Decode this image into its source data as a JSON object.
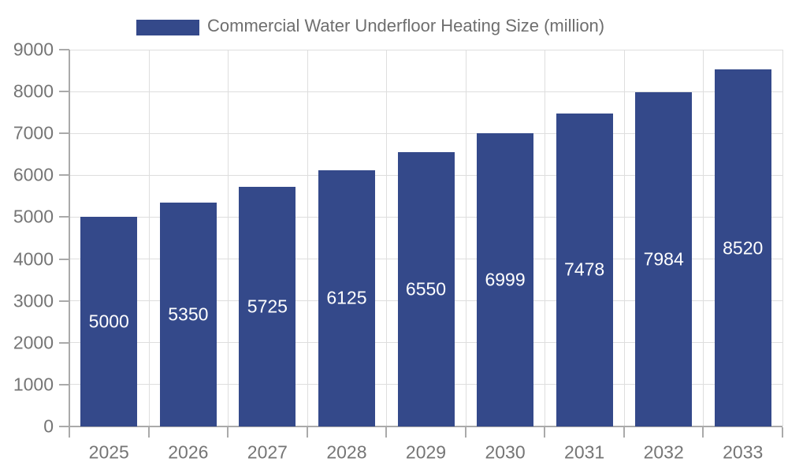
{
  "chart_data": {
    "type": "bar",
    "title": "Commercial Water Underfloor Heating Size (million)",
    "categories": [
      "2025",
      "2026",
      "2027",
      "2028",
      "2029",
      "2030",
      "2031",
      "2032",
      "2033"
    ],
    "values": [
      5000,
      5350,
      5725,
      6125,
      6550,
      6999,
      7478,
      7984,
      8520
    ],
    "xlabel": "",
    "ylabel": "",
    "ylim": [
      0,
      9000
    ],
    "ytick_step": 1000,
    "ytick_labels": [
      "0",
      "1000",
      "2000",
      "3000",
      "4000",
      "5000",
      "6000",
      "7000",
      "8000",
      "9000"
    ],
    "grid": true,
    "legend_position": "top",
    "bar_color": "#34498A",
    "bar_label_color": "#ffffff",
    "axis_color": "#aaaaaa",
    "grid_color": "#dedede",
    "tick_label_color": "#757575",
    "legend_text_color": "#6e6e6e"
  }
}
